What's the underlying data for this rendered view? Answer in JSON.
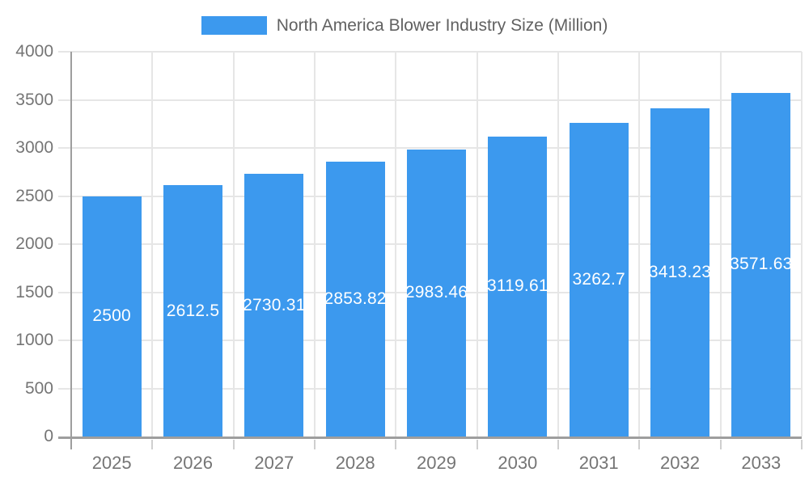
{
  "chart_data": {
    "type": "bar",
    "title": "",
    "legend_label": "North America Blower Industry Size (Million)",
    "legend_position": "top",
    "categories": [
      "2025",
      "2026",
      "2027",
      "2028",
      "2029",
      "2030",
      "2031",
      "2032",
      "2033"
    ],
    "values": [
      2500,
      2612.5,
      2730.31,
      2853.82,
      2983.46,
      3119.61,
      3262.7,
      3413.23,
      3571.63
    ],
    "bar_labels": [
      "2500",
      "2612.5",
      "2730.31",
      "2853.82",
      "2983.46",
      "3119.61",
      "3262.7",
      "3413.23",
      "3571.63"
    ],
    "xlabel": "",
    "ylabel": "",
    "ylim": [
      0,
      4000
    ],
    "ytick_step": 500,
    "ytick_labels": [
      "0",
      "500",
      "1000",
      "1500",
      "2000",
      "2500",
      "3000",
      "3500",
      "4000"
    ],
    "grid": "on",
    "colors": {
      "bar": "#3C99EE",
      "grid_line": "#E6E6E6",
      "below_axis_tick": "#CFCFCF",
      "axis_line": "#9E9E9E",
      "axis_text": "#757575",
      "legend_text": "#616161",
      "bar_label_text": "#FFFFFF",
      "background": "#FFFFFF"
    }
  }
}
